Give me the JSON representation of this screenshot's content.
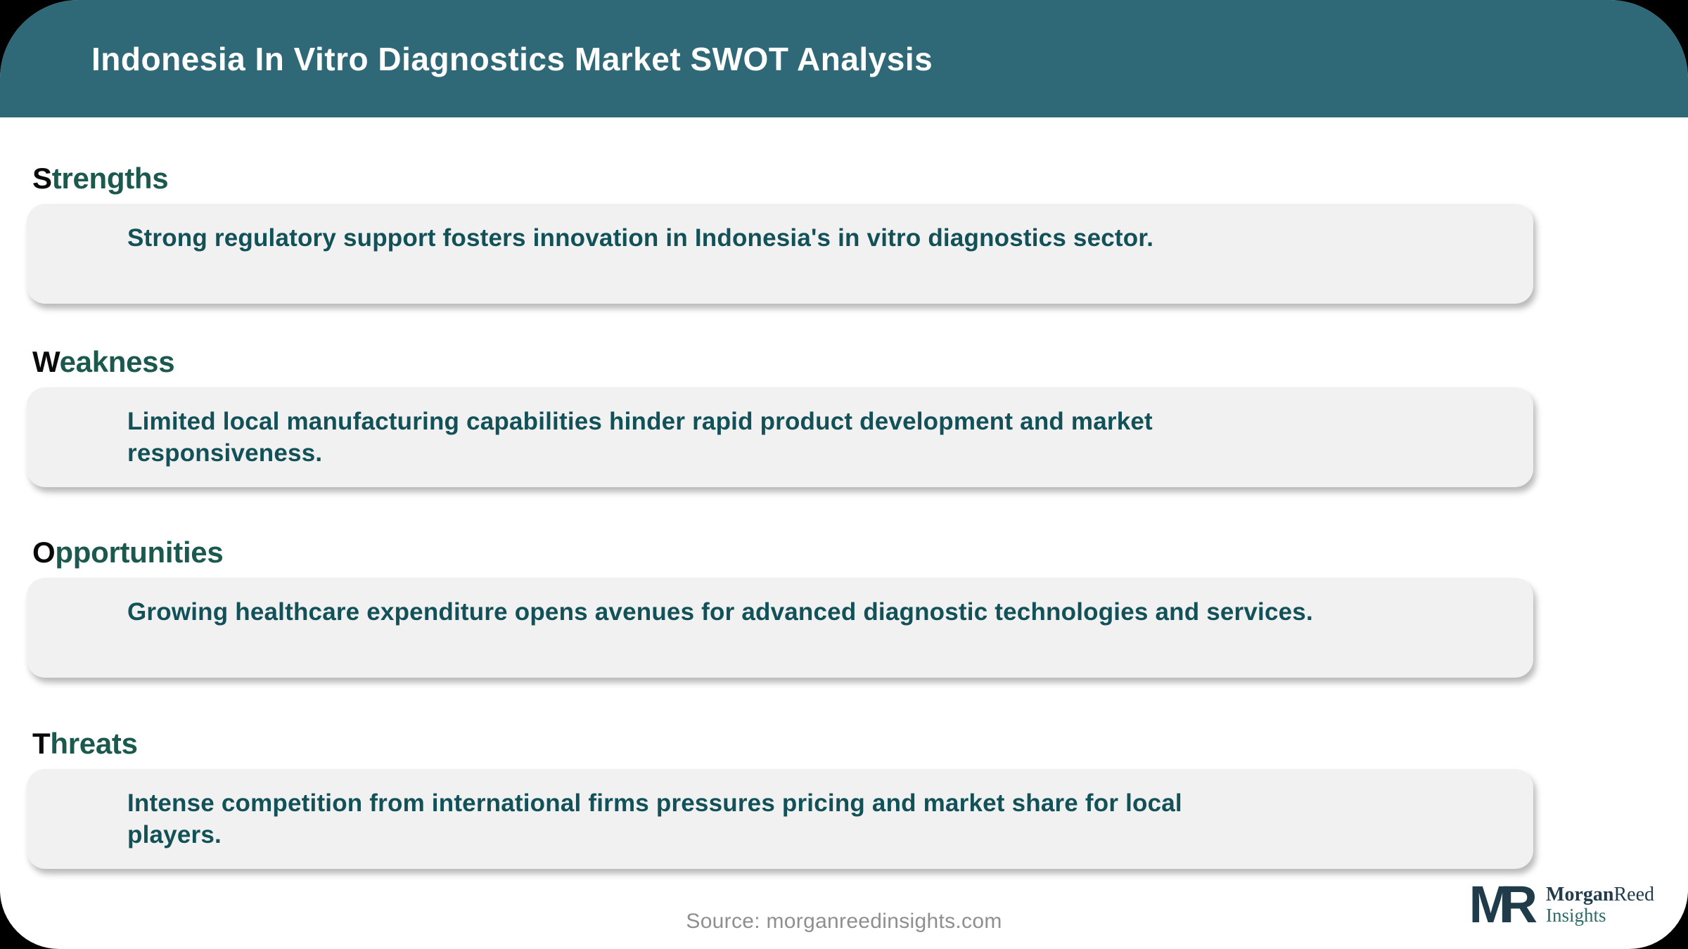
{
  "header": {
    "title": "Indonesia In Vitro Diagnostics Market SWOT Analysis"
  },
  "sections": [
    {
      "id": "strengths",
      "title": "Strengths",
      "title_first": "S",
      "title_rest": "trengths",
      "text": "Strong regulatory support fosters innovation in Indonesia's in vitro diagnostics sector.",
      "lines": [
        "Strong regulatory support fosters innovation in Indonesia's in vitro diagnostics sector."
      ]
    },
    {
      "id": "weakness",
      "title": "Weakness",
      "title_first": "W",
      "title_rest": "eakness",
      "text": "Limited local manufacturing capabilities hinder rapid product development and market responsiveness.",
      "lines": [
        "Limited local manufacturing capabilities hinder rapid product development and market",
        "responsiveness."
      ]
    },
    {
      "id": "opportunities",
      "title": "Opportunities",
      "title_first": "O",
      "title_rest": "pportunities",
      "text": "Growing healthcare expenditure opens avenues for advanced diagnostic technologies and services.",
      "lines": [
        "Growing healthcare expenditure opens avenues for advanced diagnostic technologies and services."
      ]
    },
    {
      "id": "threats",
      "title": "Threats",
      "title_first": "T",
      "title_rest": "hreats",
      "text": "Intense competition from international firms pressures pricing and market share for local players.",
      "lines": [
        "Intense competition from international firms pressures pricing and market share for local",
        "players."
      ]
    }
  ],
  "footer": {
    "source": "Source: morganreedinsights.com",
    "logo": {
      "icon": "mr-monogram",
      "monogram_m": "M",
      "monogram_r": "R",
      "brand_bold": "Morgan",
      "brand_regular": "Reed",
      "brand_sub": "Insights"
    }
  },
  "colors": {
    "canvas_corners": "#000000",
    "header_teal": "#2F6877",
    "title_white": "#FFFFFF",
    "heading_teal": "#1B584E",
    "heading_first_letter_black": "#0A0A0A",
    "box_background": "#F1F1F1",
    "box_text_teal": "#125158",
    "source_gray": "#8F8F8F",
    "logo_dark": "#203C4A",
    "logo_teal": "#2D6B66"
  }
}
